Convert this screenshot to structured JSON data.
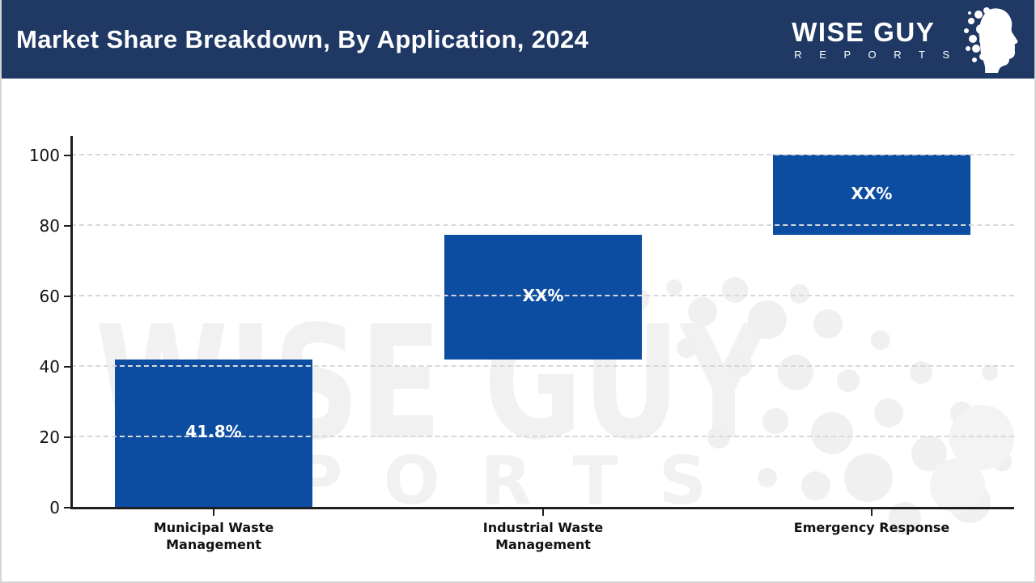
{
  "header": {
    "title": "Market Share Breakdown, By Application, 2024",
    "logo": {
      "line1": "WISE GUY",
      "line2": "R E P O R T S"
    }
  },
  "watermark": {
    "line1": "WISE GUY",
    "line2": "R E P O R T S"
  },
  "chart_data": {
    "type": "bar",
    "subtype": "stacked-waterfall-single-column-segments",
    "title": "Market Share Breakdown, By Application, 2024",
    "categories": [
      "Municipal Waste Management",
      "Industrial Waste Management",
      "Emergency Response"
    ],
    "category_label_lines": [
      [
        "Municipal Waste",
        "Management"
      ],
      [
        "Industrial Waste",
        "Management"
      ],
      [
        "Emergency Response"
      ]
    ],
    "series": [
      {
        "name": "Market Share %",
        "starts": [
          0,
          41.8,
          77.2
        ],
        "values": [
          41.8,
          35.4,
          22.8
        ]
      }
    ],
    "bar_labels": [
      "41.8%",
      "XX%",
      "XX%"
    ],
    "xlabel": "",
    "ylabel": "",
    "yticks": [
      0,
      20,
      40,
      60,
      80,
      100
    ],
    "ylim": [
      0,
      105
    ],
    "grid": "horizontal-dashed-above-bars",
    "legend": "none"
  },
  "colors": {
    "header_bg": "#1f3864",
    "bar": "#0c4da2",
    "bar_label": "#ffffff",
    "grid": "#d8d8d8",
    "axis": "#1f1f1f",
    "tick_text": "#141414",
    "watermark": "#f1f1f1",
    "border": "#d6d6d6"
  }
}
